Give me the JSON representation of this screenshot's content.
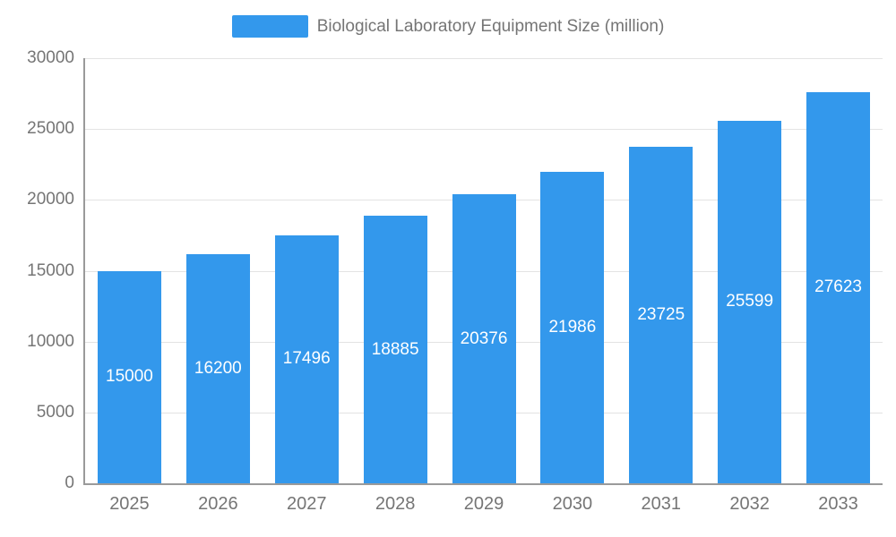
{
  "legend": {
    "label": "Biological Laboratory Equipment Size (million)"
  },
  "chart_data": {
    "type": "bar",
    "title": "Biological Laboratory Equipment Size (million)",
    "categories": [
      "2025",
      "2026",
      "2027",
      "2028",
      "2029",
      "2030",
      "2031",
      "2032",
      "2033"
    ],
    "values": [
      15000,
      16200,
      17496,
      18885,
      20376,
      21986,
      23725,
      25599,
      27623
    ],
    "xlabel": "",
    "ylabel": "",
    "ylim": [
      0,
      30000
    ],
    "yticks": [
      0,
      5000,
      10000,
      15000,
      20000,
      25000,
      30000
    ],
    "grid": true,
    "legend_position": "top-center",
    "value_labels": "inside-bar-centered-white",
    "bar_color": "#3398EC",
    "value_label_color": "#ffffff",
    "axis_text_color": "#757575",
    "gridline_color": "#e3e3e3",
    "axis_line_color": "#9a9a9a"
  }
}
